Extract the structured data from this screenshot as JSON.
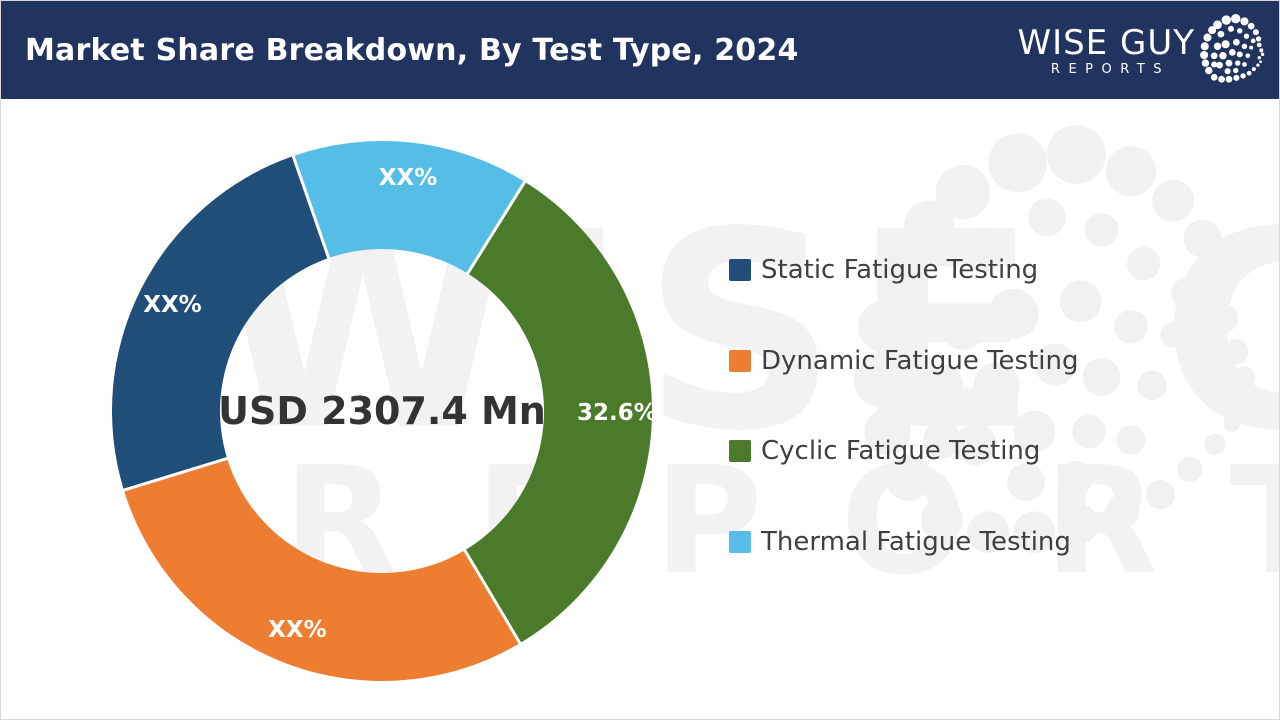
{
  "header": {
    "title": "Market Share Breakdown, By Test Type, 2024",
    "background": "#20345F",
    "logo": {
      "line1": "WISE GUY",
      "line2": "REPORTS"
    }
  },
  "chart_data": {
    "type": "pie",
    "subtype": "donut",
    "title": "Market Share Breakdown, By Test Type, 2024",
    "center_label": "USD 2307.4 Mn",
    "categories": [
      "Static Fatigue Testing",
      "Dynamic Fatigue Testing",
      "Cyclic Fatigue Testing",
      "Thermal Fatigue Testing"
    ],
    "values": [
      24.4,
      28.8,
      32.6,
      14.2
    ],
    "displayed_labels": [
      "XX%",
      "XX%",
      "32.6%",
      "XX%"
    ],
    "colors": [
      "#1F4E78",
      "#ED7D31",
      "#4A7A2A",
      "#56BEE6"
    ],
    "start_angle_deg": 109.2,
    "direction": "counterclockwise",
    "inner_radius_ratio": 0.6,
    "label_radius_ratio": 0.87,
    "separator_color": "#ffffff",
    "legend_position": "right",
    "grid": false
  },
  "legend": {
    "items": [
      {
        "label": "Static Fatigue Testing",
        "color": "#1F4E78"
      },
      {
        "label": "Dynamic Fatigue Testing",
        "color": "#ED7D31"
      },
      {
        "label": "Cyclic Fatigue Testing",
        "color": "#4A7A2A"
      },
      {
        "label": "Thermal Fatigue Testing",
        "color": "#56BEE6"
      }
    ]
  },
  "watermark": {
    "line1": "WISE GUY",
    "line2": "REPORTS"
  }
}
